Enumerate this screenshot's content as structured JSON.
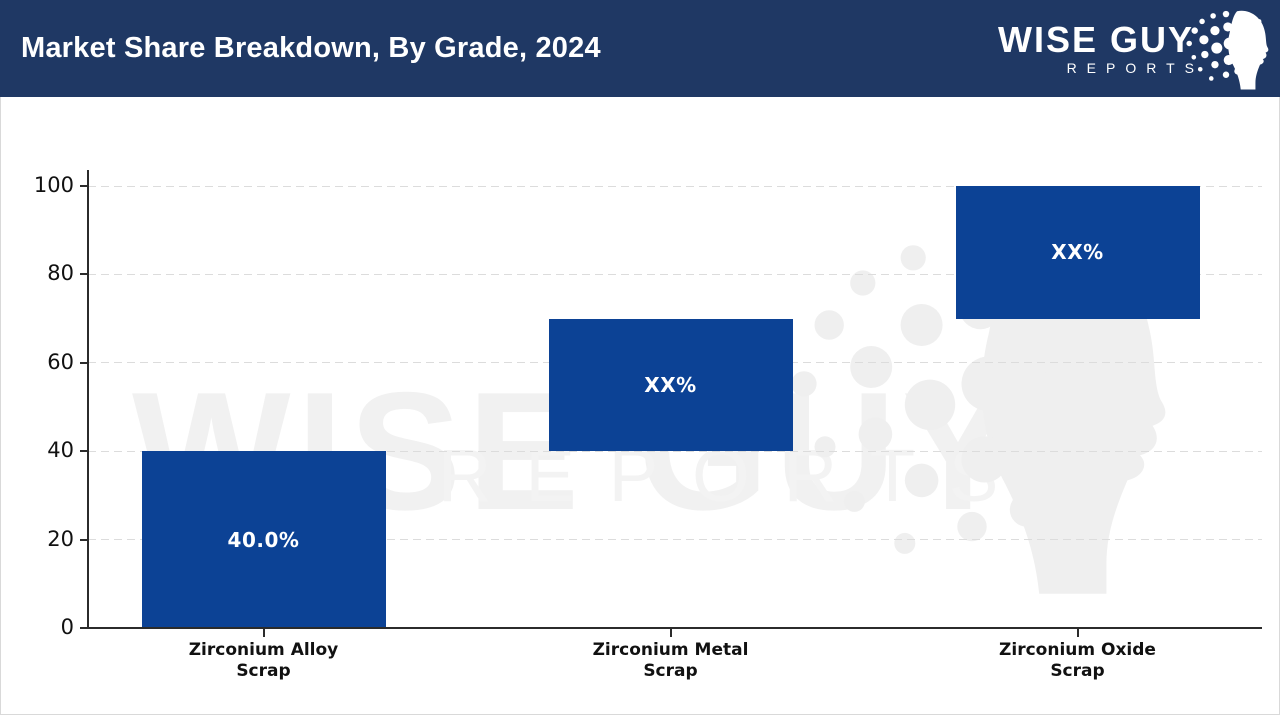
{
  "header": {
    "title": "Market Share Breakdown, By Grade, 2024",
    "bg_color": "#1f3864",
    "text_color": "#ffffff",
    "logo": {
      "line1": "WISE GUY",
      "line2": "REPORTS"
    }
  },
  "watermark": {
    "line1": "WISE GUY",
    "line2": "REPORTS"
  },
  "chart_data": {
    "type": "bar",
    "subtype": "floating-waterfall",
    "title": "Market Share Breakdown, By Grade, 2024",
    "categories": [
      "Zirconium Alloy Scrap",
      "Zirconium Metal Scrap",
      "Zirconium Oxide Scrap"
    ],
    "bars": [
      {
        "name_lines": [
          "Zirconium Alloy",
          "Scrap"
        ],
        "start": 0,
        "end": 40,
        "label": "40.0%"
      },
      {
        "name_lines": [
          "Zirconium Metal",
          "Scrap"
        ],
        "start": 40,
        "end": 70,
        "label": "XX%"
      },
      {
        "name_lines": [
          "Zirconium Oxide",
          "Scrap"
        ],
        "start": 70,
        "end": 100,
        "label": "XX%"
      }
    ],
    "ylim": [
      0,
      100
    ],
    "yticks": [
      0,
      20,
      40,
      60,
      80,
      100
    ],
    "grid": {
      "horizontal": true,
      "style": "dashed"
    },
    "legend": "none",
    "xlabel": "",
    "ylabel": "",
    "bar_color": "#0c4295",
    "bar_label_color": "#ffffff"
  }
}
